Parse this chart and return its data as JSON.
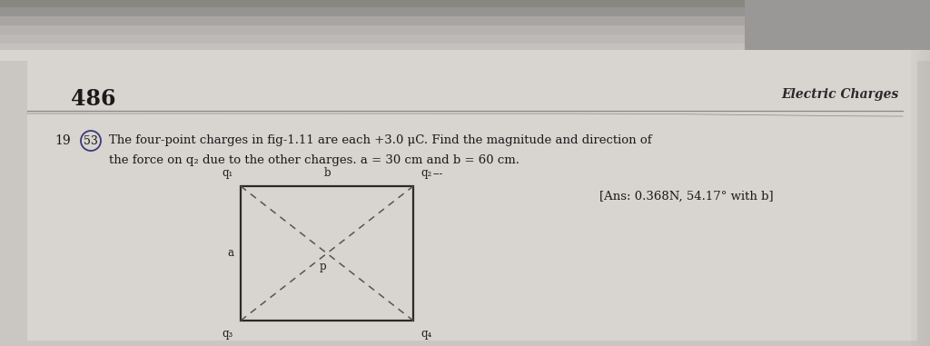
{
  "page_number": "486",
  "page_header_right": "Electric Charges",
  "problem_number": "19",
  "problem_sub": "53",
  "problem_text_line1": "The four-point charges in fig-1.11 are each +3.0 μC. Find the magnitude and direction of",
  "problem_text_line2": "the force on q₂ due to the other charges. a = 30 cm and b = 60 cm.",
  "answer_text": "[Ans: 0.368N, 54.17° with b]",
  "bg_color": "#cac7c3",
  "page_color": "#d8d4d0",
  "top_shadow_color": "#a8a5a2",
  "header_line_color": "#888888",
  "rect_color": "#2a2a2a",
  "dashed_color": "#555555",
  "font_color_main": "#1a1a1a",
  "font_color_header": "#2a2a2a",
  "circle_color": "#3a3a7a",
  "q2_dash": "---",
  "label_q1": "q₁",
  "label_q2": "q₂",
  "label_q3": "q₃",
  "label_q4": "q₄",
  "label_b": "b",
  "label_a": "a",
  "label_p": "p"
}
